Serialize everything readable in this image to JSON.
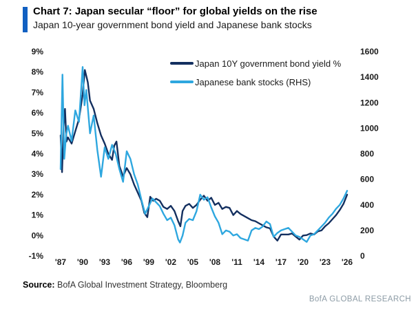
{
  "header": {
    "title": "Chart 7: Japan secular “floor” for global yields on the rise",
    "subtitle": "Japan 10-year government bond yield and Japanese bank stocks"
  },
  "source": {
    "label": "Source:",
    "text": " BofA Global Investment Strategy, Bloomberg"
  },
  "footer": {
    "brand": "BofA GLOBAL RESEARCH"
  },
  "colors": {
    "accent": "#1160C2",
    "navy": "#132F5F",
    "lightblue": "#2EA7DF",
    "footer_gray": "#8C9BA5",
    "tick_text": "#1a1a1a"
  },
  "chart_data": {
    "type": "line",
    "title": "Japan 10-year government bond yield and Japanese bank stocks",
    "grid": false,
    "legend_position": "top-center",
    "left_axis": {
      "min": -1,
      "max": 9,
      "tick_values": [
        9,
        8,
        7,
        6,
        5,
        4,
        3,
        2,
        1,
        0,
        -1
      ],
      "tick_labels": [
        "9%",
        "8%",
        "7%",
        "6%",
        "5%",
        "4%",
        "3%",
        "2%",
        "1%",
        "0%",
        "-1%"
      ]
    },
    "right_axis": {
      "min": 0,
      "max": 1600,
      "tick_values": [
        1600,
        1400,
        1200,
        1000,
        800,
        600,
        400,
        200,
        0
      ],
      "tick_labels": [
        "1600",
        "1400",
        "1200",
        "1000",
        "800",
        "600",
        "400",
        "200",
        "0"
      ]
    },
    "x_axis": {
      "min": 1987,
      "max": 2026,
      "tick_values": [
        1987,
        1990,
        1993,
        1996,
        1999,
        2002,
        2005,
        2008,
        2011,
        2014,
        2017,
        2020,
        2023,
        2026
      ],
      "tick_labels": [
        "'87",
        "'90",
        "'93",
        "'96",
        "'99",
        "'02",
        "'05",
        "'08",
        "'11",
        "'14",
        "'17",
        "'20",
        "'23",
        "'26"
      ]
    },
    "series": [
      {
        "name": "Japan 10Y government bond yield %",
        "axis": "left",
        "color_key": "navy",
        "x": [
          1987.0,
          1987.2,
          1987.4,
          1987.6,
          1987.8,
          1988.0,
          1988.5,
          1989.0,
          1989.5,
          1990.0,
          1990.3,
          1990.7,
          1991.0,
          1991.5,
          1992.0,
          1992.5,
          1993.0,
          1993.5,
          1994.0,
          1994.3,
          1994.6,
          1995.0,
          1995.5,
          1996.0,
          1996.5,
          1997.0,
          1997.5,
          1998.0,
          1998.4,
          1998.8,
          1999.2,
          1999.6,
          2000.0,
          2000.5,
          2001.0,
          2001.5,
          2002.0,
          2002.5,
          2003.0,
          2003.3,
          2003.6,
          2004.0,
          2004.5,
          2005.0,
          2005.5,
          2006.0,
          2006.5,
          2007.0,
          2007.5,
          2008.0,
          2008.5,
          2009.0,
          2009.5,
          2010.0,
          2010.5,
          2011.0,
          2011.5,
          2012.0,
          2012.5,
          2013.0,
          2013.5,
          2014.0,
          2014.5,
          2015.0,
          2015.5,
          2016.0,
          2016.5,
          2017.0,
          2017.5,
          2018.0,
          2018.5,
          2019.0,
          2019.5,
          2020.0,
          2020.5,
          2021.0,
          2021.5,
          2022.0,
          2022.5,
          2023.0,
          2023.5,
          2024.0,
          2024.5,
          2025.0,
          2025.5,
          2026.0
        ],
        "y": [
          4.9,
          3.1,
          5.3,
          6.2,
          4.6,
          4.8,
          4.5,
          5.1,
          5.7,
          6.9,
          8.1,
          7.5,
          6.6,
          6.2,
          5.5,
          4.9,
          4.5,
          4.0,
          3.7,
          4.4,
          4.6,
          3.4,
          2.9,
          3.3,
          3.0,
          2.5,
          2.1,
          1.7,
          1.1,
          0.9,
          1.9,
          1.7,
          1.8,
          1.7,
          1.4,
          1.3,
          1.45,
          1.2,
          0.7,
          0.45,
          1.2,
          1.45,
          1.55,
          1.35,
          1.5,
          1.75,
          1.95,
          1.7,
          1.85,
          1.5,
          1.6,
          1.3,
          1.4,
          1.35,
          1.0,
          1.2,
          1.05,
          0.95,
          0.85,
          0.75,
          0.7,
          0.6,
          0.5,
          0.4,
          0.35,
          -0.05,
          -0.25,
          0.05,
          0.05,
          0.05,
          0.1,
          -0.05,
          -0.2,
          0.0,
          0.02,
          0.1,
          0.05,
          0.2,
          0.25,
          0.45,
          0.6,
          0.8,
          1.0,
          1.25,
          1.55,
          2.0
        ]
      },
      {
        "name": "Japanese bank stocks (RHS)",
        "axis": "right",
        "color_key": "lightblue",
        "x": [
          1987.0,
          1987.25,
          1987.5,
          1987.75,
          1988.0,
          1988.5,
          1989.0,
          1989.5,
          1990.0,
          1990.25,
          1990.5,
          1991.0,
          1991.5,
          1992.0,
          1992.5,
          1993.0,
          1993.5,
          1994.0,
          1994.5,
          1995.0,
          1995.5,
          1996.0,
          1996.5,
          1997.0,
          1997.5,
          1998.0,
          1998.5,
          1999.0,
          1999.5,
          2000.0,
          2000.5,
          2001.0,
          2001.5,
          2002.0,
          2002.5,
          2003.0,
          2003.25,
          2003.6,
          2004.0,
          2004.5,
          2005.0,
          2005.5,
          2006.0,
          2006.5,
          2007.0,
          2007.5,
          2008.0,
          2008.5,
          2009.0,
          2009.5,
          2010.0,
          2010.5,
          2011.0,
          2011.5,
          2012.0,
          2012.5,
          2013.0,
          2013.5,
          2014.0,
          2014.5,
          2015.0,
          2015.5,
          2016.0,
          2016.5,
          2017.0,
          2017.5,
          2018.0,
          2018.5,
          2019.0,
          2019.5,
          2020.0,
          2020.5,
          2021.0,
          2021.5,
          2022.0,
          2022.5,
          2023.0,
          2023.5,
          2024.0,
          2024.5,
          2025.0,
          2025.5,
          2026.0
        ],
        "y": [
          680,
          1420,
          760,
          950,
          1020,
          900,
          1140,
          1050,
          1480,
          1180,
          1300,
          960,
          1100,
          830,
          620,
          850,
          760,
          870,
          800,
          680,
          580,
          820,
          760,
          640,
          560,
          440,
          330,
          390,
          450,
          420,
          390,
          330,
          280,
          300,
          240,
          130,
          105,
          160,
          260,
          290,
          280,
          350,
          480,
          440,
          460,
          380,
          310,
          260,
          170,
          200,
          190,
          160,
          170,
          140,
          130,
          120,
          200,
          220,
          210,
          230,
          270,
          250,
          150,
          180,
          200,
          210,
          220,
          190,
          160,
          150,
          130,
          110,
          160,
          170,
          200,
          230,
          260,
          300,
          330,
          370,
          400,
          450,
          510
        ]
      }
    ]
  }
}
